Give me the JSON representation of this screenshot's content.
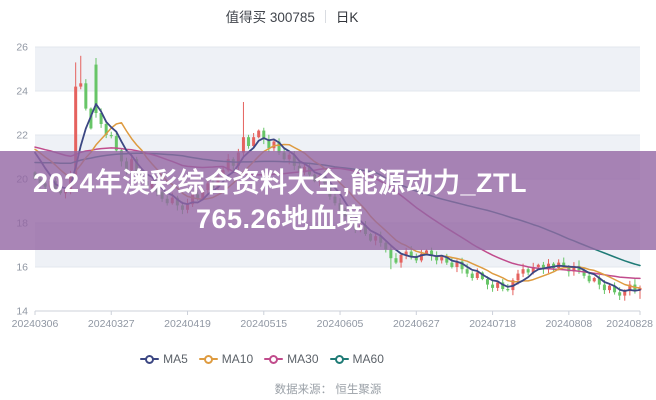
{
  "header": {
    "title": "值得买 300785",
    "period": "日K"
  },
  "banner": {
    "line1": "2024年澳彩综合资料大全,能源动力_ZTL",
    "line2": "765.26地血境",
    "bg": "rgba(147,103,164,0.80)",
    "text_color": "#ffffff"
  },
  "legend": {
    "items": [
      {
        "label": "MA5",
        "color": "#3c4783"
      },
      {
        "label": "MA10",
        "color": "#de9b40"
      },
      {
        "label": "MA30",
        "color": "#c14b8c"
      },
      {
        "label": "MA60",
        "color": "#1f7b76"
      }
    ]
  },
  "footer": {
    "text": "数据来源： 恒生聚源"
  },
  "chart_data": {
    "type": "candlestick",
    "title": "值得买 300785 日K",
    "y_axis": {
      "min": 14,
      "max": 26,
      "ticks": [
        14,
        16,
        18,
        20,
        22,
        24,
        26
      ]
    },
    "x_axis": {
      "labels": [
        "20240306",
        "20240327",
        "20240419",
        "20240515",
        "20240605",
        "20240627",
        "20240718",
        "20240808",
        "20240828"
      ],
      "label_indices": [
        0,
        15,
        30,
        45,
        60,
        75,
        90,
        105,
        119
      ]
    },
    "first_open": 20.3,
    "close": [
      20.0,
      19.8,
      19.65,
      19.9,
      19.5,
      19.35,
      19.5,
      20.2,
      24.2,
      24.35,
      23.2,
      22.3,
      23.0,
      22.5,
      22.0,
      21.95,
      21.3,
      20.8,
      20.4,
      20.9,
      20.3,
      19.9,
      19.6,
      19.8,
      19.4,
      19.1,
      18.9,
      19.15,
      18.8,
      18.6,
      18.85,
      19.3,
      19.1,
      19.5,
      19.8,
      19.6,
      20.1,
      20.4,
      20.9,
      20.6,
      21.2,
      21.9,
      21.5,
      21.9,
      22.2,
      21.8,
      21.4,
      21.7,
      21.2,
      20.9,
      21.1,
      20.6,
      20.3,
      20.55,
      20.2,
      19.9,
      20.15,
      19.8,
      19.2,
      18.9,
      18.6,
      18.3,
      18.0,
      17.7,
      17.9,
      17.5,
      17.2,
      17.4,
      17.1,
      16.8,
      16.4,
      16.2,
      16.55,
      16.7,
      16.5,
      16.3,
      16.6,
      16.75,
      16.5,
      16.3,
      16.45,
      16.2,
      16.0,
      16.25,
      15.9,
      15.7,
      15.5,
      15.75,
      15.45,
      15.2,
      15.05,
      15.3,
      15.0,
      14.95,
      15.4,
      15.7,
      15.9,
      15.75,
      16.0,
      16.1,
      15.9,
      16.15,
      15.95,
      16.2,
      16.0,
      15.8,
      16.05,
      15.85,
      15.6,
      15.35,
      15.5,
      15.2,
      14.95,
      15.15,
      14.85,
      14.7,
      14.9,
      15.2,
      14.95,
      15.05
    ],
    "special_candles": {
      "8": {
        "high": 25.3,
        "low": 19.8
      },
      "9": {
        "high": 25.6
      },
      "12": {
        "open": 25.2,
        "high": 25.5
      },
      "41": {
        "high": 23.5
      },
      "70": {
        "low": 15.9
      },
      "115": {
        "low": 14.5
      },
      "119": {
        "low": 14.55
      }
    },
    "ma_windows": [
      5,
      10,
      30,
      60
    ],
    "ma_seed": {
      "older": 20.0,
      "recent": 21.5,
      "n": 60
    },
    "colors": {
      "up": "#e5625e",
      "down": "#67c567",
      "ma5": "#3c4783",
      "ma10": "#de9b40",
      "ma30": "#c14b8c",
      "ma60": "#1f7b76"
    },
    "grid": {
      "band_fill": "#eef1f6",
      "band_alt": "#ffffff",
      "line": "#e3e7ee",
      "axis": "#ccd0da"
    },
    "legend_position": "bottom",
    "grid_on": true
  }
}
